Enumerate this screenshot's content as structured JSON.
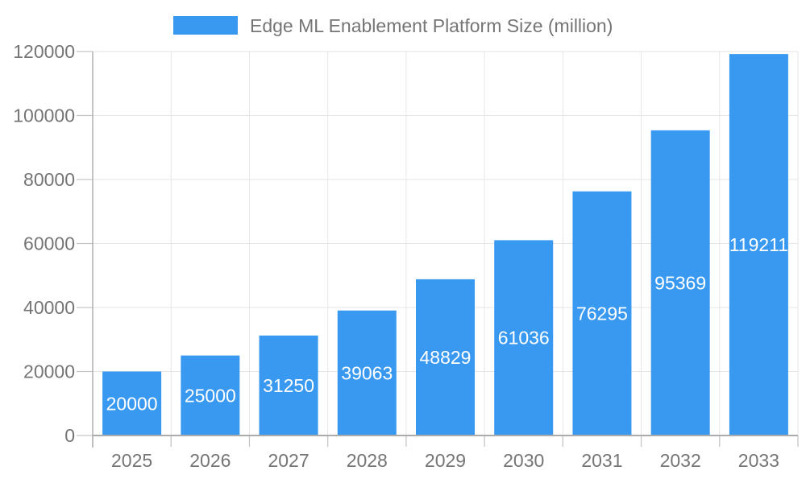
{
  "chart_data": {
    "type": "bar",
    "title": "Edge ML Enablement Platform Size (million)",
    "categories": [
      "2025",
      "2026",
      "2027",
      "2028",
      "2029",
      "2030",
      "2031",
      "2032",
      "2033"
    ],
    "values": [
      20000,
      25000,
      31250,
      39063,
      48829,
      61036,
      76295,
      95369,
      119211
    ],
    "value_labels": [
      "20000",
      "25000",
      "31250",
      "39063",
      "48829",
      "61036",
      "76295",
      "95369",
      "119211"
    ],
    "xlabel": "",
    "ylabel": "",
    "ylim": [
      0,
      120000
    ],
    "yticks": [
      0,
      20000,
      40000,
      60000,
      80000,
      100000,
      120000
    ],
    "ytick_labels": [
      "0",
      "20000",
      "40000",
      "60000",
      "80000",
      "100000",
      "120000"
    ],
    "grid": true,
    "legend_position": "top",
    "legend_swatch": "blue-rect",
    "colors": {
      "bar": "#3999F0",
      "value_label": "#FFFFFF",
      "axis_text": "#757575",
      "gridline": "#E6E6E6",
      "axis_line": "#ABABAB",
      "tick": "#C6C6C6"
    }
  }
}
